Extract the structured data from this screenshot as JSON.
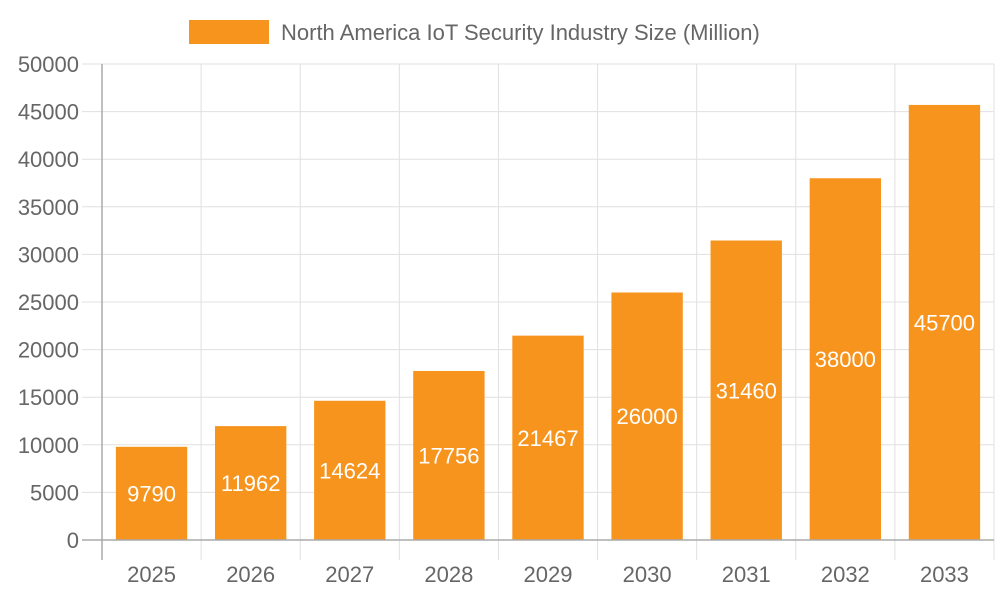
{
  "chart_data": {
    "type": "bar",
    "title": "",
    "xlabel": "",
    "ylabel": "",
    "categories": [
      "2025",
      "2026",
      "2027",
      "2028",
      "2029",
      "2030",
      "2031",
      "2032",
      "2033"
    ],
    "series": [
      {
        "name": "North America IoT Security Industry Size (Million)",
        "values": [
          9790,
          11962,
          14624,
          17756,
          21467,
          26000,
          31460,
          38000,
          45700
        ]
      }
    ],
    "ylim": [
      0,
      50000
    ],
    "yticks": [
      0,
      5000,
      10000,
      15000,
      20000,
      25000,
      30000,
      35000,
      40000,
      45000,
      50000
    ],
    "grid": true,
    "legend_position": "top",
    "data_labels": true,
    "colors": {
      "bar": "#f7941d",
      "label": "#ffffff",
      "axis_text": "#666666",
      "grid": "#e0e0e0"
    }
  }
}
